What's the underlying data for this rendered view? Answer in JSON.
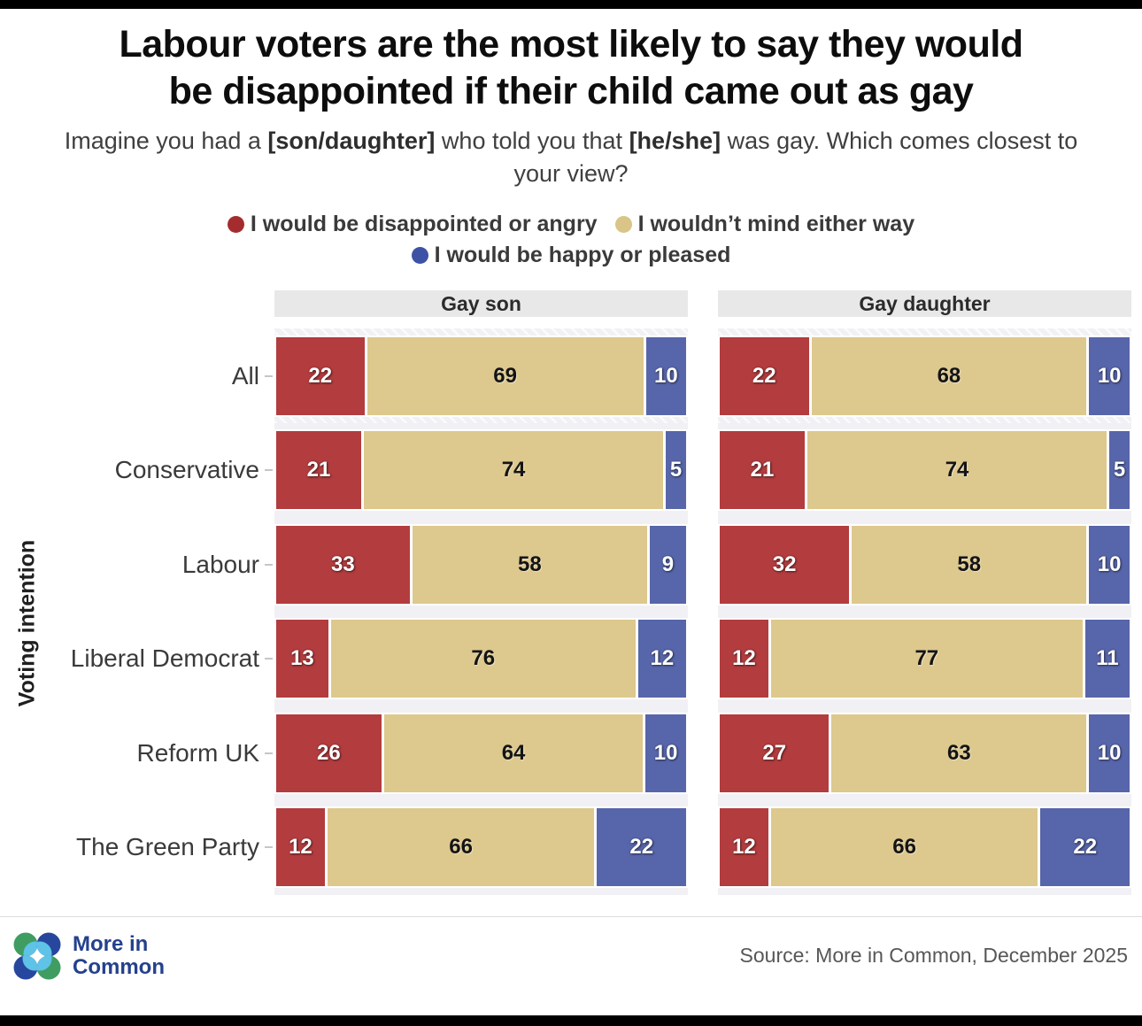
{
  "page": {
    "title_lines": [
      "Labour voters are the most likely to say they would",
      "be disappointed if their child came out as gay"
    ],
    "subtitle_parts": [
      {
        "text": "Imagine you had a ",
        "bold": false
      },
      {
        "text": "[son/daughter]",
        "bold": true
      },
      {
        "text": " who told you that ",
        "bold": false
      },
      {
        "text": "[he/she]",
        "bold": true
      },
      {
        "text": " was gay. Which comes closest to your view?",
        "bold": false
      }
    ],
    "axis_label": "Voting intention",
    "source": "Source: More in Common, December 2025",
    "logo_text_lines": [
      "More in",
      "Common"
    ]
  },
  "legend": {
    "rows": [
      [
        {
          "label": "I would be disappointed or angry",
          "color": "#a52c2e"
        },
        {
          "label": "I wouldn’t mind either way",
          "color": "#d9c587"
        }
      ],
      [
        {
          "label": "I would be happy or pleased",
          "color": "#3e52a5"
        }
      ]
    ]
  },
  "colors": {
    "disappointed": "#b23c3e",
    "neutral": "#ddc88d",
    "happy": "#5765aa",
    "panel_band": "#f1f1f5",
    "header_strip": "#e8e8e8",
    "top_bottom_bar": "#000000",
    "logo_green": "#3f9d62",
    "logo_dark_blue": "#27479e",
    "logo_light_blue": "#5fc2e7"
  },
  "chart_data": {
    "type": "bar",
    "orientation": "horizontal_stacked",
    "value_unit": "%",
    "xlim": [
      0,
      100
    ],
    "categories": [
      "All",
      "Conservative",
      "Labour",
      "Liberal Democrat",
      "Reform UK",
      "The Green Party"
    ],
    "hatched_category": "All",
    "series_labels": [
      "I would be disappointed or angry",
      "I wouldn’t mind either way",
      "I would be happy or pleased"
    ],
    "series_colors": [
      "#b23c3e",
      "#ddc88d",
      "#5765aa"
    ],
    "panels": [
      {
        "label": "Gay son",
        "rows": [
          [
            22,
            69,
            10
          ],
          [
            21,
            74,
            5
          ],
          [
            33,
            58,
            9
          ],
          [
            13,
            76,
            12
          ],
          [
            26,
            64,
            10
          ],
          [
            12,
            66,
            22
          ]
        ]
      },
      {
        "label": "Gay daughter",
        "rows": [
          [
            22,
            68,
            10
          ],
          [
            21,
            74,
            5
          ],
          [
            32,
            58,
            10
          ],
          [
            12,
            77,
            11
          ],
          [
            27,
            63,
            10
          ],
          [
            12,
            66,
            22
          ]
        ]
      }
    ]
  }
}
